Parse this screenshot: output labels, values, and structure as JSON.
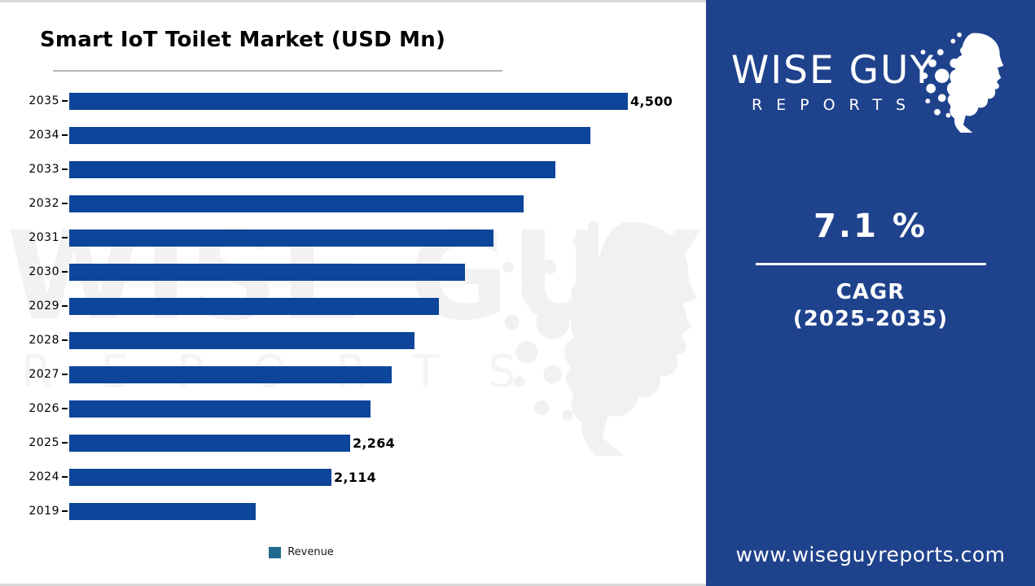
{
  "title": "Smart IoT Toilet Market (USD Mn)",
  "chart_data": {
    "type": "bar",
    "orientation": "horizontal",
    "title": "Smart IoT Toilet Market (USD Mn)",
    "categories": [
      "2035",
      "2034",
      "2033",
      "2032",
      "2031",
      "2030",
      "2029",
      "2028",
      "2027",
      "2026",
      "2025",
      "2024",
      "2019"
    ],
    "values": [
      4500,
      4197,
      3919,
      3659,
      3417,
      3190,
      2979,
      2781,
      2597,
      2425,
      2264,
      2114,
      1500
    ],
    "value_labels": [
      "4,500",
      "",
      "",
      "",
      "",
      "",
      "",
      "",
      "",
      "",
      "2,264",
      "2,114",
      ""
    ],
    "series_name": "Revenue",
    "xlabel": "",
    "ylabel": "",
    "xlim": [
      0,
      5000
    ],
    "grid": false,
    "legend_position": "bottom-center",
    "bar_color": "#0c4599",
    "legend_swatch_color": "#1f6a8e"
  },
  "watermark": {
    "line1": "WISE GUY",
    "line2": "REPORTS"
  },
  "sidebar": {
    "background": "#1f428c",
    "logo": {
      "line1": "WISE GUY",
      "line2": "REPORTS"
    },
    "cagr": {
      "value": "7.1 %",
      "label": "CAGR",
      "range": "(2025-2035)"
    },
    "website": "www.wiseguyreports.com"
  },
  "colors": {
    "bar": "#0c4599",
    "legend_swatch": "#1f6a8e",
    "sidebar_background": "#1f428c",
    "panel_border": "#d9d9d9",
    "title_rule": "#b8b8b8",
    "watermark": "#f2f2f2"
  }
}
